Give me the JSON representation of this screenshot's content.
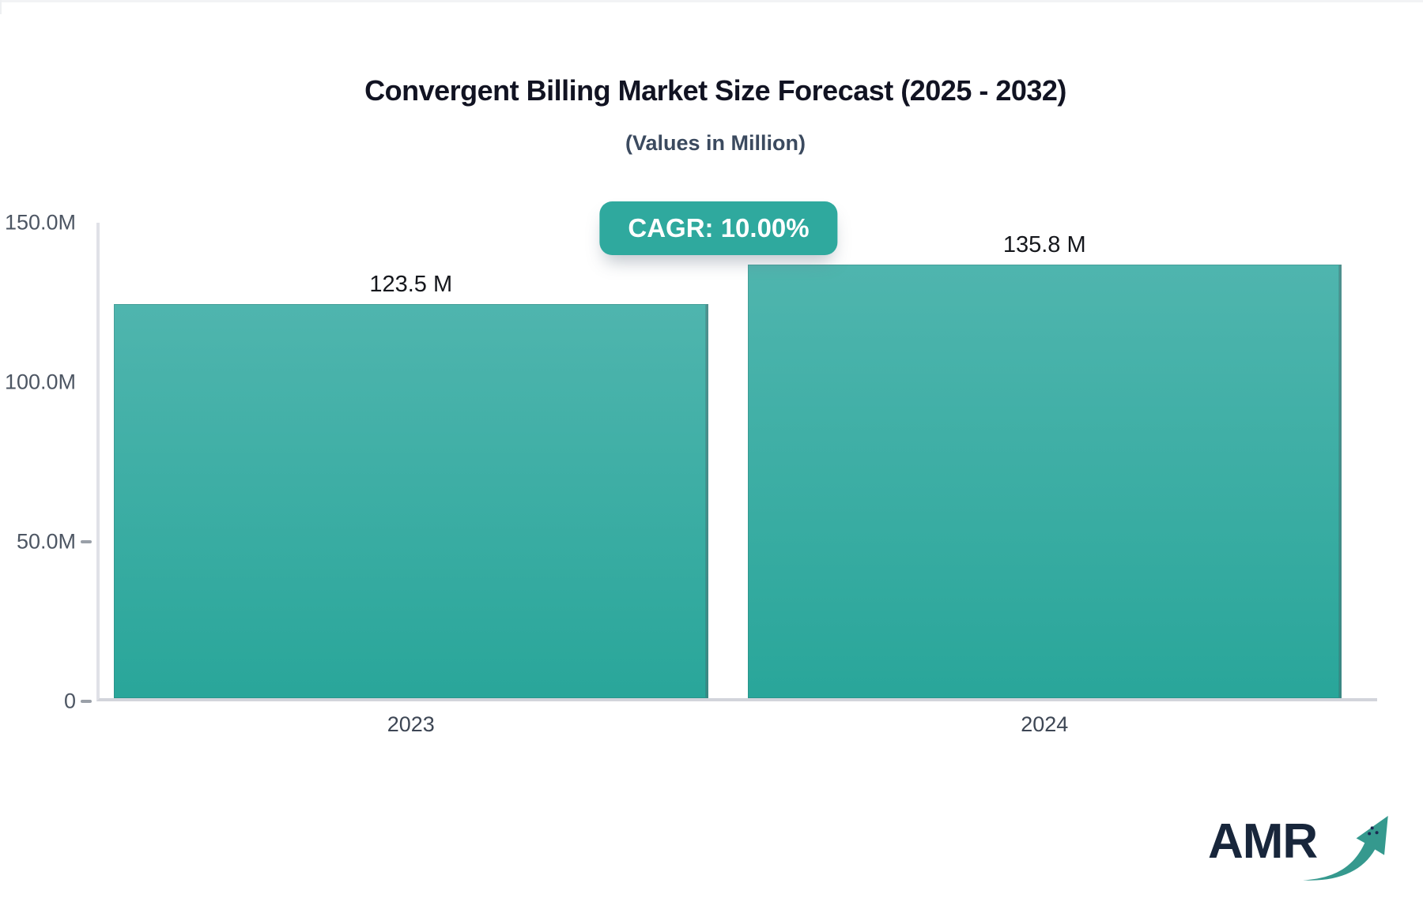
{
  "cagr_badge": {
    "label": "CAGR: 10.00%",
    "color": "#2FA99E"
  },
  "chart_data": {
    "type": "bar",
    "title": "Convergent Billing Market Size Forecast (2025 - 2032)",
    "subtitle": "(Values in Million)",
    "categories": [
      "2023",
      "2024"
    ],
    "values": [
      123.5,
      135.8
    ],
    "value_labels": [
      "123.5 M",
      "135.8 M"
    ],
    "unit": "Million",
    "ylim": [
      0,
      150
    ],
    "yticks": [
      {
        "value": 0,
        "label": "0",
        "dash": true
      },
      {
        "value": 50,
        "label": "50.0M",
        "dash": true
      },
      {
        "value": 100,
        "label": "100.0M",
        "dash": false
      },
      {
        "value": 150,
        "label": "150.0M",
        "dash": false
      }
    ],
    "grid": false,
    "legend": false,
    "bar_color_top": "#4FB5AE",
    "bar_color_bottom": "#29A69A"
  },
  "logo": {
    "text": "AMR",
    "text_color": "#18263B",
    "arrow_color": "#35998E"
  }
}
